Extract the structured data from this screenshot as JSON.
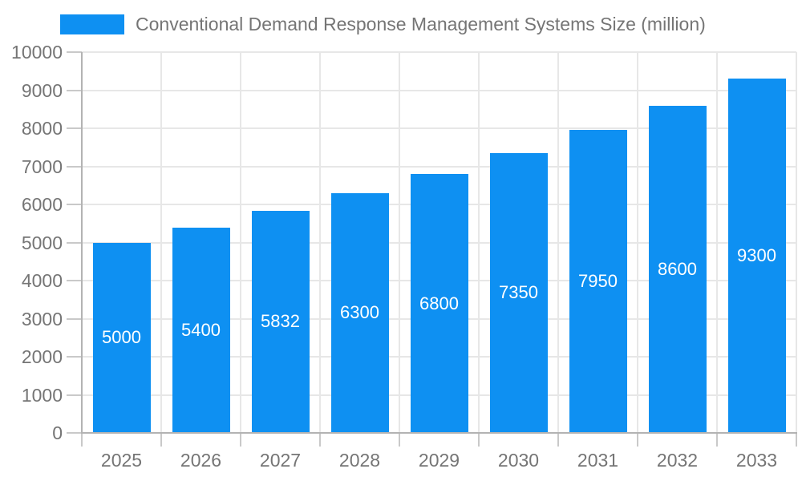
{
  "legend": {
    "label": "Conventional Demand Response Management Systems Size (million)",
    "swatch_color": "#0e90f2"
  },
  "chart_data": {
    "type": "bar",
    "title": "Conventional Demand Response Management Systems Size (million)",
    "categories": [
      "2025",
      "2026",
      "2027",
      "2028",
      "2029",
      "2030",
      "2031",
      "2032",
      "2033"
    ],
    "values": [
      5000,
      5400,
      5832,
      6300,
      6800,
      7350,
      7950,
      8600,
      9300
    ],
    "xlabel": "",
    "ylabel": "",
    "ylim": [
      0,
      10000
    ],
    "yticks": [
      0,
      1000,
      2000,
      3000,
      4000,
      5000,
      6000,
      7000,
      8000,
      9000,
      10000
    ],
    "grid": true,
    "legend_position": "top-left",
    "bar_value_labels_visible": true,
    "colors": {
      "bar": "#0e90f2",
      "bar_label_text": "#ffffff",
      "axis_text": "#757575",
      "gridline": "#e7e7e7",
      "axis_line": "#b3b3b3",
      "tick": "#c9c9c9",
      "background": "#ffffff"
    }
  }
}
